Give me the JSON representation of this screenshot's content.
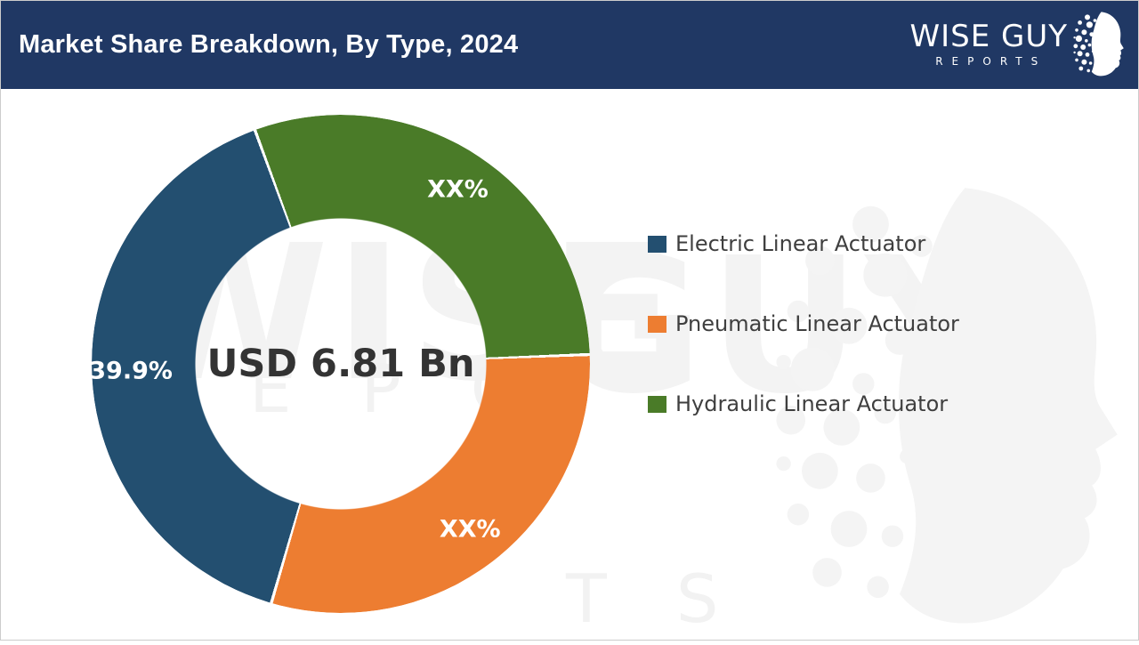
{
  "header": {
    "title": "Market Share Breakdown, By Type, 2024",
    "logo": {
      "name": "WISE GUY",
      "sub": "REPORTS"
    }
  },
  "chart_data": {
    "type": "pie",
    "variant": "donut",
    "title": "Market Share Breakdown, By Type, 2024",
    "center_label": "USD 6.81 Bn",
    "legend_position": "right",
    "start_angle_deg": 196.2,
    "draw_order": [
      0,
      2,
      1
    ],
    "gap_deg": 0.7,
    "label_radius_ratio": 0.843,
    "segments": [
      {
        "name": "Electric Linear Actuator",
        "display_label": "39.9%",
        "share_pct": 39.9,
        "color": "#234F70"
      },
      {
        "name": "Pneumatic Linear Actuator",
        "display_label": "XX%",
        "share_pct": 30.1,
        "color": "#ED7D31"
      },
      {
        "name": "Hydraulic Linear Actuator",
        "display_label": "XX%",
        "share_pct": 30.0,
        "color": "#4A7B28"
      }
    ]
  },
  "legend": {
    "items": [
      {
        "label": "Electric Linear Actuator",
        "color": "#234F70"
      },
      {
        "label": "Pneumatic Linear Actuator",
        "color": "#ED7D31"
      },
      {
        "label": "Hydraulic Linear Actuator",
        "color": "#4A7B28"
      }
    ]
  },
  "watermark": {
    "frag_wise": "WISE",
    "frag_guy": "GUY",
    "frag_repo": "REPO",
    "frag_ts": "TS"
  }
}
